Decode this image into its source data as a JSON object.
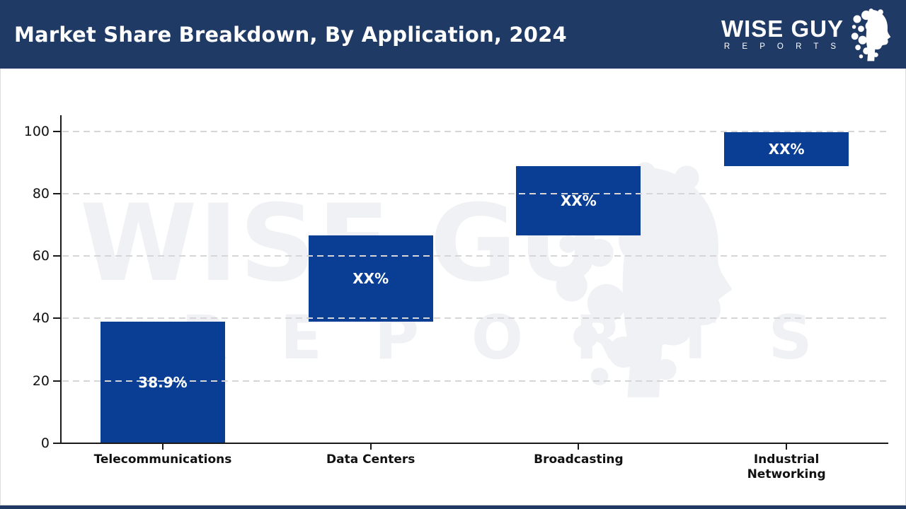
{
  "header": {
    "title": "Market Share Breakdown, By Application, 2024",
    "logo_line1": "WISE GUY",
    "logo_line2": "R E P O R T S"
  },
  "watermark": {
    "line1": "WISE GUY",
    "line2": "R E P O R T S"
  },
  "colors": {
    "header_navy": "#203a66",
    "bar_blue": "#0a3e94",
    "gridline_gray": "#d6d6d6",
    "axis_black": "#1a1a1a",
    "watermark_gray": "#f0f1f4",
    "bar_label_white": "#ffffff"
  },
  "chart_data": {
    "type": "bar",
    "subtype": "waterfall",
    "title": "Market Share Breakdown, By Application, 2024",
    "xlabel": "",
    "ylabel": "",
    "categories": [
      "Telecommunications",
      "Data Centers",
      "Broadcasting",
      "Industrial\nNetworking"
    ],
    "segments": [
      {
        "category": "Telecommunications",
        "start": 0,
        "end": 38.9,
        "label": "38.9%"
      },
      {
        "category": "Data Centers",
        "start": 38.9,
        "end": 66.7,
        "label": "XX%"
      },
      {
        "category": "Broadcasting",
        "start": 66.7,
        "end": 88.8,
        "label": "XX%"
      },
      {
        "category": "Industrial Networking",
        "start": 88.8,
        "end": 99.6,
        "label": "XX%"
      }
    ],
    "yticks": [
      0,
      20,
      40,
      60,
      80,
      100
    ],
    "ylim": [
      0,
      105
    ],
    "grid": "dashed horizontal, drawn over bars",
    "legend": "none",
    "bar_color": "#0a3e94",
    "value_label_color": "#ffffff"
  }
}
